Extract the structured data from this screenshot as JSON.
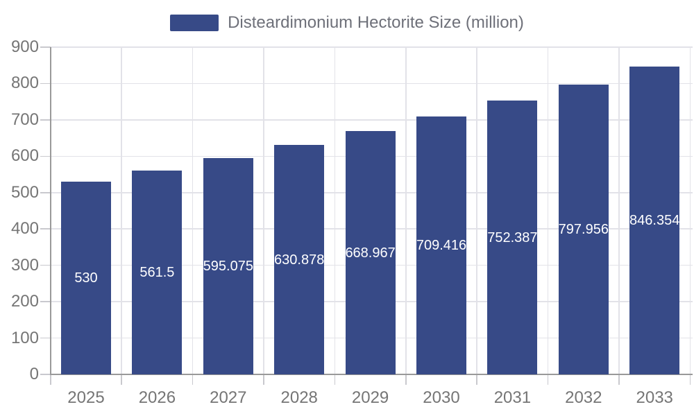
{
  "legend": {
    "label": "Disteardimonium Hectorite Size (million)"
  },
  "chart_data": {
    "type": "bar",
    "title": "Disteardimonium Hectorite Size (million)",
    "categories": [
      "2025",
      "2026",
      "2027",
      "2028",
      "2029",
      "2030",
      "2031",
      "2032",
      "2033"
    ],
    "series": [
      {
        "name": "Disteardimonium Hectorite Size (million)",
        "values": [
          530,
          561.5,
          595.075,
          630.878,
          668.967,
          709.416,
          752.387,
          797.956,
          846.354
        ]
      }
    ],
    "xlabel": "",
    "ylabel": "",
    "ylim": [
      0,
      900
    ],
    "y_ticks": [
      0,
      100,
      200,
      300,
      400,
      500,
      600,
      700,
      800,
      900
    ],
    "grid": "horizontal-and-vertical",
    "legend_position": "top-center",
    "value_labels": "white, centered inside bars",
    "colors": {
      "bar": "#374A87",
      "value_label": "#ffffff",
      "grid": "#e2e2e8",
      "axis": "#999999",
      "tick": "#c9c9ce",
      "axis_label": "#757575",
      "legend_text": "#6e7079"
    }
  }
}
